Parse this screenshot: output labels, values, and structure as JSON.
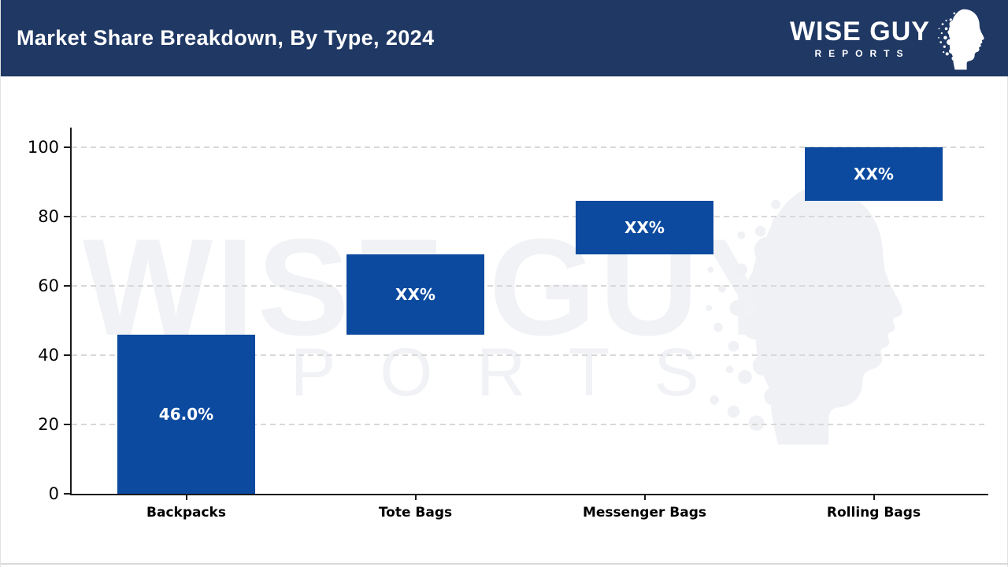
{
  "header": {
    "title": "Market Share Breakdown, By Type, 2024",
    "logo": {
      "wordmark": "WISE GUY",
      "subtext": "REPORTS"
    }
  },
  "watermark": {
    "line1": "WISE GUY",
    "line2": "PORTS"
  },
  "colors": {
    "header_bg": "#1f3864",
    "bar": "#0b4a9f",
    "axis": "#1a1a1a",
    "grid": "#d8d8d8",
    "watermark": "#f1f2f5",
    "bar_label": "#ffffff"
  },
  "chart_data": {
    "type": "bar",
    "variant": "floating-segment-waterfall",
    "title": "Market Share Breakdown, By Type, 2024",
    "categories": [
      "Backpacks",
      "Tote Bags",
      "Messenger Bags",
      "Rolling Bags"
    ],
    "segments": [
      {
        "category": "Backpacks",
        "start": 0,
        "end": 46,
        "label": "46.0%"
      },
      {
        "category": "Tote Bags",
        "start": 46,
        "end": 69,
        "label": "XX%"
      },
      {
        "category": "Messenger Bags",
        "start": 69,
        "end": 84.5,
        "label": "XX%"
      },
      {
        "category": "Rolling Bags",
        "start": 84.5,
        "end": 100,
        "label": "XX%"
      }
    ],
    "xlabel": "",
    "ylabel": "",
    "ylim": [
      0,
      100
    ],
    "yticks": [
      0,
      20,
      40,
      60,
      80,
      100
    ],
    "grid": "horizontal-dashed",
    "legend": "none"
  }
}
